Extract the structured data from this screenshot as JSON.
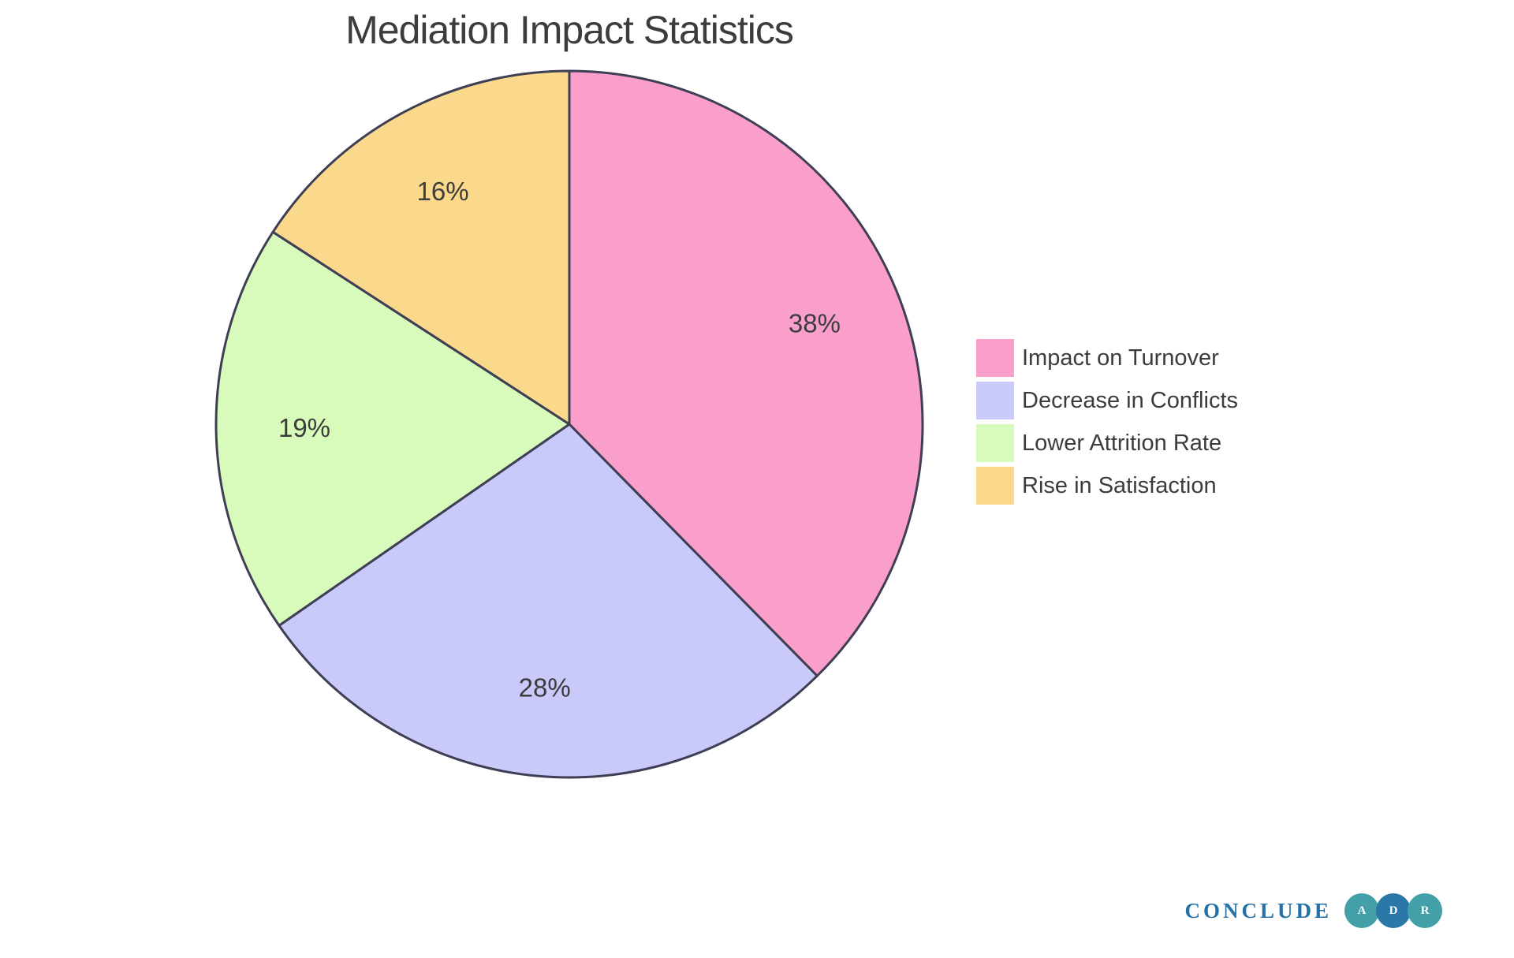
{
  "page": {
    "background_color": "#ffffff"
  },
  "chart_data": {
    "type": "pie",
    "title": "Mediation Impact Statistics",
    "direction": "clockwise",
    "start_angle_deg": 0,
    "legend_position": "right",
    "stroke_color": "#3e3e55",
    "stroke_width": 3,
    "label_color": "#3c3c3c",
    "categories": [
      "Impact on Turnover",
      "Decrease in Conflicts",
      "Lower Attrition Rate",
      "Rise in Satisfaction"
    ],
    "values": [
      38,
      28,
      19,
      16
    ],
    "slices": [
      {
        "label": "Impact on Turnover",
        "value": 38,
        "pct_label": "38%",
        "color": "#fa9fcb"
      },
      {
        "label": "Decrease in Conflicts",
        "value": 28,
        "pct_label": "28%",
        "color": "#c9c9fa"
      },
      {
        "label": "Lower Attrition Rate",
        "value": 19,
        "pct_label": "19%",
        "color": "#d8fabb"
      },
      {
        "label": "Rise in Satisfaction",
        "value": 16,
        "pct_label": "16%",
        "color": "#fad98c"
      }
    ]
  },
  "branding": {
    "wordmark": "CONCLUDE",
    "wordmark_color": "#2471a8",
    "badges": [
      {
        "letter": "A",
        "color": "#43a0a8"
      },
      {
        "letter": "D",
        "color": "#2a77a8"
      },
      {
        "letter": "R",
        "color": "#43a0a8"
      }
    ]
  }
}
